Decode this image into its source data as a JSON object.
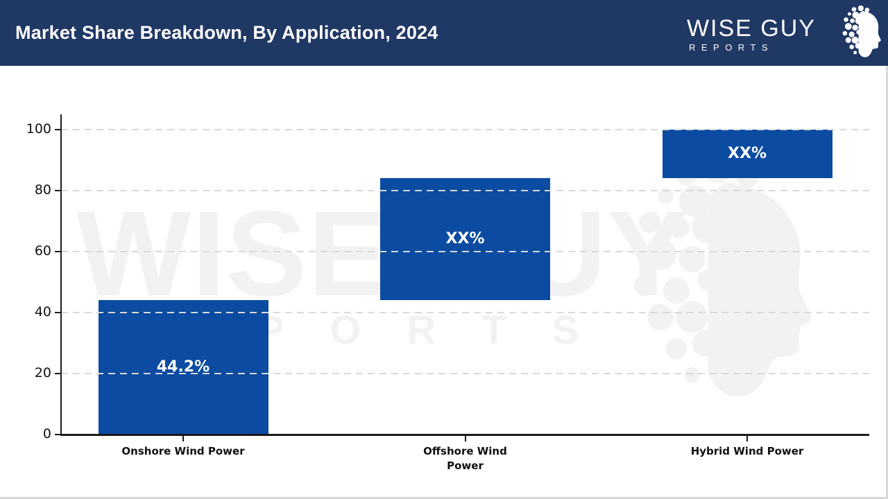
{
  "header": {
    "title": "Market Share Breakdown, By Application, 2024",
    "logo": {
      "line1": "WISE GUY",
      "line2": "REPORTS"
    }
  },
  "watermark": {
    "line1": "WISE GUY",
    "line2": "REPORTS"
  },
  "colors": {
    "header_bg": "#203864",
    "bar_blue": "#0b4ba1",
    "grid_gray": "#d9d9d9",
    "watermark_gray": "#f2f2f2",
    "axis_black": "#1a1a1a",
    "label_white": "#ffffff"
  },
  "chart_data": {
    "type": "bar",
    "subtype": "waterfall",
    "title": "Market Share Breakdown, By Application, 2024",
    "categories": [
      "Onshore Wind Power",
      "Offshore Wind\nPower",
      "Hybrid Wind Power"
    ],
    "segments": [
      {
        "category": "Onshore Wind Power",
        "start": 0,
        "end": 44.2,
        "label": "44.2%"
      },
      {
        "category": "Offshore Wind Power",
        "start": 44.2,
        "end": 84.2,
        "label": "XX%"
      },
      {
        "category": "Hybrid Wind Power",
        "start": 84.2,
        "end": 100,
        "label": "XX%"
      }
    ],
    "yticks": [
      0,
      20,
      40,
      60,
      80,
      100
    ],
    "ylim": [
      0,
      105
    ],
    "xlabel": "",
    "ylabel": "",
    "grid": "horizontal-dashed-over-bars",
    "legend": "none",
    "bar_color": "#0b4ba1"
  }
}
